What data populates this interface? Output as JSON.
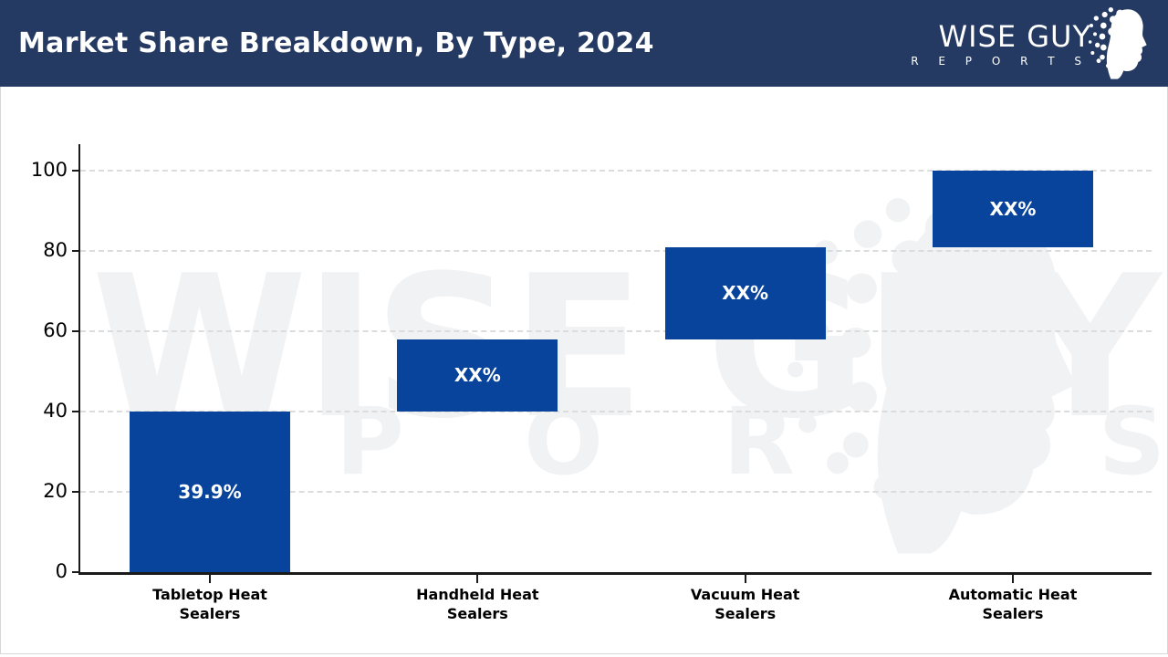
{
  "header": {
    "title": "Market Share Breakdown, By Type, 2024",
    "bg_color": "#253A62",
    "logo": {
      "line1": "WISE GUY",
      "line2": "R E P O R T S"
    }
  },
  "watermark": {
    "line1": "WISE GUY",
    "line2": "P O R T S"
  },
  "chart_data": {
    "type": "bar",
    "subtype": "floating-waterfall",
    "title": "Market Share Breakdown, By Type, 2024",
    "categories": [
      "Tabletop Heat\nSealers",
      "Handheld Heat\nSealers",
      "Vacuum Heat\nSealers",
      "Automatic Heat\nSealers"
    ],
    "segments": [
      {
        "start": 0,
        "end": 40,
        "label": "39.9%"
      },
      {
        "start": 40,
        "end": 58,
        "label": "XX%"
      },
      {
        "start": 58,
        "end": 81,
        "label": "XX%"
      },
      {
        "start": 81,
        "end": 100,
        "label": "XX%"
      }
    ],
    "values_estimated": [
      39.9,
      18,
      23,
      19.1
    ],
    "ylim": [
      0,
      100
    ],
    "yticks": [
      "0",
      "20",
      "40",
      "60",
      "80",
      "100"
    ],
    "bar_color": "#08439C",
    "grid": "horizontal-dashed",
    "xlabel": "",
    "ylabel": ""
  }
}
